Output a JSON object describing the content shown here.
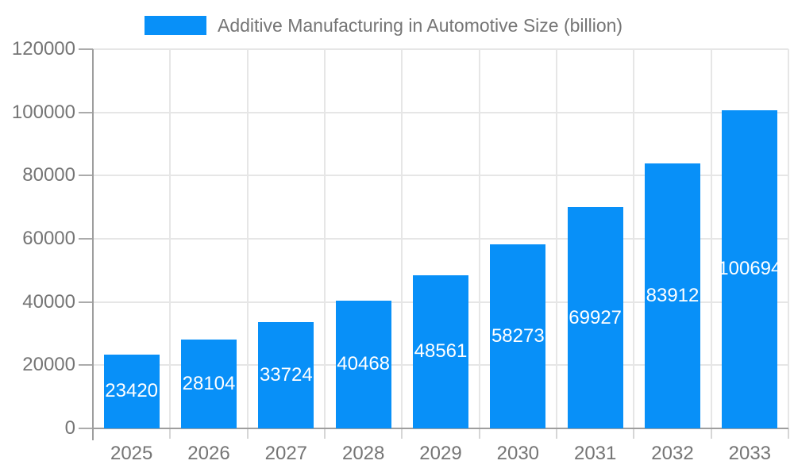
{
  "chart_data": {
    "type": "bar",
    "title": "Additive Manufacturing in Automotive Size (billion)",
    "legend": [
      "Additive Manufacturing in Automotive Size (billion)"
    ],
    "legend_position": "top",
    "categories": [
      "2025",
      "2026",
      "2027",
      "2028",
      "2029",
      "2030",
      "2031",
      "2032",
      "2033"
    ],
    "series": [
      {
        "name": "Additive Manufacturing in Automotive Size (billion)",
        "values": [
          23420,
          28104,
          33724,
          40468,
          48561,
          58273,
          69927,
          83912,
          100694
        ]
      }
    ],
    "xlabel": "",
    "ylabel": "",
    "ylim": [
      0,
      120000
    ],
    "ytick_step": 20000,
    "ytick_labels": [
      "0",
      "20000",
      "40000",
      "60000",
      "80000",
      "100000",
      "120000"
    ],
    "grid": true,
    "value_label_placement": "inside-center",
    "colors": {
      "bar": "#0890f8",
      "value_label": "#ffffff",
      "axis_line": "#9e9e9e",
      "gridline": "#e6e6e6",
      "tick_label": "#757575",
      "legend_text": "#757575",
      "background": "#ffffff"
    }
  }
}
